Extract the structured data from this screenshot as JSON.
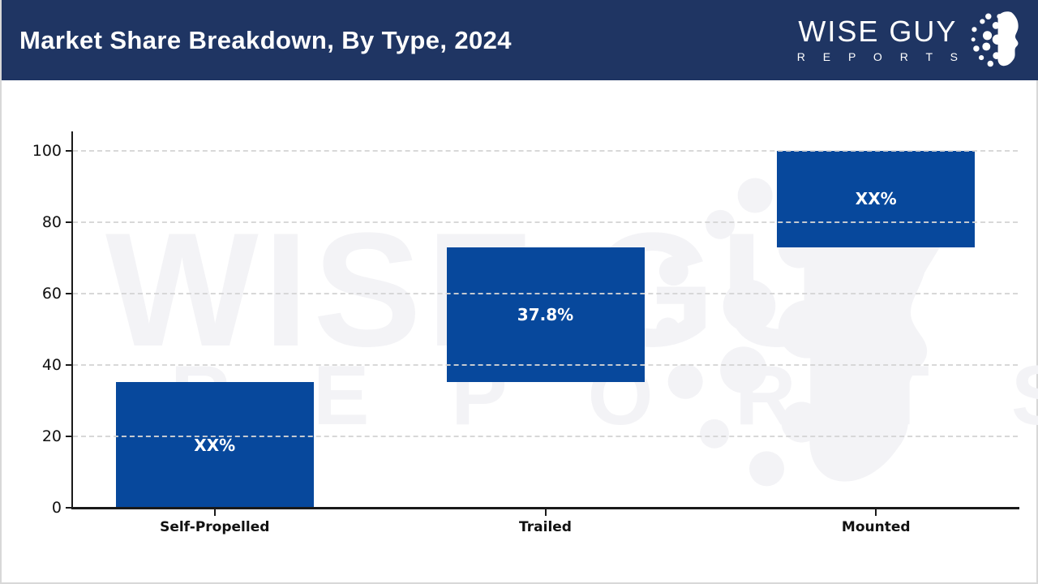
{
  "header": {
    "title": "Market Share Breakdown, By Type, 2024",
    "background_color": "#1f3563",
    "text_color": "#ffffff",
    "logo": {
      "line1": "WISE GUY",
      "line2": "R E P O R T S",
      "icon": "dotted-face-icon"
    }
  },
  "watermark": {
    "line1": "WISE GUY",
    "line2": "R E P O R T S",
    "icon": "dotted-face-icon",
    "color": "#f3f3f6"
  },
  "chart_data": {
    "type": "bar",
    "subtype": "floating-segment (waterfall-style), vertical",
    "title": "Market Share Breakdown, By Type, 2024",
    "categories": [
      "Self-Propelled",
      "Trailed",
      "Mounted"
    ],
    "bars": [
      {
        "category": "Self-Propelled",
        "start": 0,
        "end": 35.2,
        "label": "XX%"
      },
      {
        "category": "Trailed",
        "start": 35.2,
        "end": 73.0,
        "label": "37.8%"
      },
      {
        "category": "Mounted",
        "start": 73.0,
        "end": 100,
        "label": "XX%"
      }
    ],
    "xlabel": "",
    "ylabel": "",
    "ylim": [
      0,
      105.5
    ],
    "yticks": [
      0,
      20,
      40,
      60,
      80,
      100
    ],
    "grid": {
      "horizontal": true,
      "style": "dashed",
      "color": "#d5d5d5"
    },
    "legend": "none",
    "bar_color": "#07489c",
    "bar_label_color": "#ffffff",
    "axis_color": "#1a1a1a",
    "tick_label_color": "#111111"
  }
}
